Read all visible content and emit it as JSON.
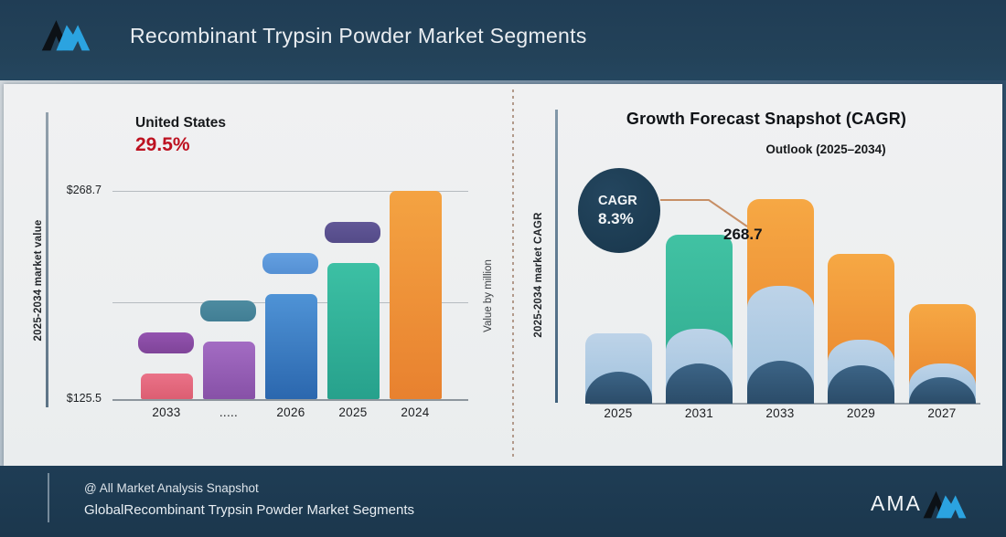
{
  "header": {
    "title": "Recombinant Trypsin Powder Market Segments",
    "logo": "AMA mountain logo"
  },
  "footer": {
    "line1": "@ All Market Analysis Snapshot",
    "line2": "GlobalRecombinant Trypsin Powder Market Segments",
    "brand": "AMA",
    "logo": "AMA mountain logo"
  },
  "colors": {
    "header_bg": "#213e56",
    "panel_bg": "#eef0f1",
    "footer_bg": "#1e3b52",
    "accent_red": "#bd1120",
    "badge_navy": "#1d3d54",
    "connector": "#c78f66",
    "logo_blue": "#2ba3e0",
    "logo_black": "#0c1116",
    "seg": {
      "navy": [
        "#3c6486",
        "#2b4c69"
      ],
      "lightblue": [
        "#bdd3e8",
        "#9fc1dd"
      ],
      "teal": [
        "#41c2a3",
        "#2fa98e"
      ],
      "orange": [
        "#f6a844",
        "#e8832d"
      ]
    }
  },
  "chart_data": [
    {
      "id": "us-market-value",
      "type": "bar",
      "region_label": "United States",
      "highlight_value": "29.5%",
      "ylabel": "2025-2034 market value",
      "ylabel_right": "Value by million",
      "ylim": [
        125.5,
        268.7
      ],
      "grid": true,
      "gridlines": [
        {
          "value": 268.7,
          "label": "$268.7"
        },
        {
          "value": 192,
          "label": ""
        },
        {
          "value": 125.5,
          "label": "$125.5"
        }
      ],
      "categories": [
        "2033",
        ".....",
        "2026",
        "2025",
        "2024"
      ],
      "values": [
        143,
        165,
        198,
        219,
        268.7
      ],
      "values_note": "estimated from gridlines; 2024 bar reaches the $268.7 line",
      "bar_colors": [
        [
          "#ea7288",
          "#dc5e72"
        ],
        [
          "#a36cc3",
          "#8751a7"
        ],
        [
          "#4f93d6",
          "#2b67ae"
        ],
        [
          "#3cc0a4",
          "#27a18c"
        ],
        [
          "#f4a342",
          "#e8812f"
        ]
      ],
      "cap_colors": [
        [
          "#9353b0",
          "#7f4499"
        ],
        [
          "#4d8ba0",
          "#417e94"
        ],
        [
          "#64a0e0",
          "#5590d4"
        ],
        [
          "#615797",
          "#544b88"
        ],
        [
          "#f5a73f",
          "#ef９838"
        ]
      ]
    },
    {
      "id": "growth-forecast",
      "type": "stacked-bar",
      "title": "Growth Forecast Snapshot (CAGR)",
      "subtitle": "Outlook (2025–2034)",
      "badge": {
        "label": "CAGR",
        "value": "8.3%"
      },
      "annotation": {
        "text": "268.7",
        "category": "2033"
      },
      "ylabel": "2025-2034 market CAGR",
      "units": "relative height (no y-axis scale shown)",
      "categories": [
        "2025",
        "2031",
        "2033",
        "2029",
        "2027"
      ],
      "bars": [
        {
          "category": "2025",
          "segments": [
            {
              "color": "navy",
              "to": 35
            },
            {
              "color": "lightblue",
              "to": 77
            }
          ]
        },
        {
          "category": "2031",
          "segments": [
            {
              "color": "navy",
              "to": 44
            },
            {
              "color": "lightblue",
              "to": 82
            },
            {
              "color": "teal",
              "to": 185
            }
          ]
        },
        {
          "category": "2033",
          "segments": [
            {
              "color": "navy",
              "to": 47
            },
            {
              "color": "lightblue",
              "to": 129
            },
            {
              "color": "orange",
              "to": 224
            }
          ]
        },
        {
          "category": "2029",
          "segments": [
            {
              "color": "navy",
              "to": 42
            },
            {
              "color": "lightblue",
              "to": 70
            },
            {
              "color": "orange",
              "to": 164
            }
          ]
        },
        {
          "category": "2027",
          "segments": [
            {
              "color": "navy",
              "to": 29
            },
            {
              "color": "lightblue",
              "to": 44
            },
            {
              "color": "orange",
              "to": 109
            }
          ]
        }
      ]
    }
  ]
}
